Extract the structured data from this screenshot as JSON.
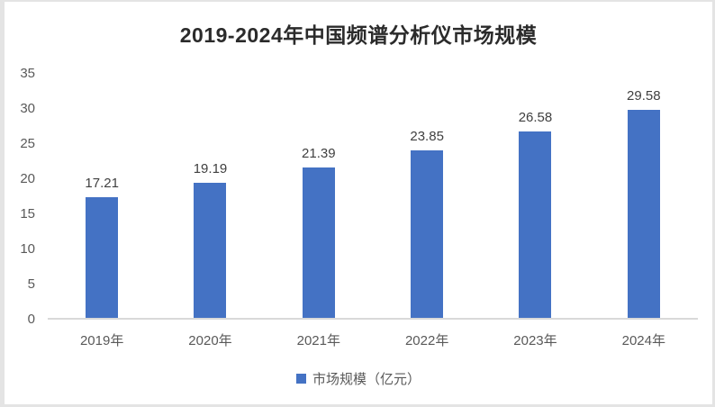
{
  "chart_data": {
    "type": "bar",
    "title": "2019-2024年中国频谱分析仪市场规模",
    "categories": [
      "2019年",
      "2020年",
      "2021年",
      "2022年",
      "2023年",
      "2024年"
    ],
    "series": [
      {
        "name": "市场规模（亿元）",
        "values": [
          17.21,
          19.19,
          21.39,
          23.85,
          26.58,
          29.58
        ]
      }
    ],
    "data_labels": [
      "17.21",
      "19.19",
      "21.39",
      "23.85",
      "26.58",
      "29.58"
    ],
    "xlabel": "",
    "ylabel": "",
    "ylim": [
      0,
      35
    ],
    "y_ticks": [
      0,
      5,
      10,
      15,
      20,
      25,
      30,
      35
    ],
    "grid": "off",
    "legend_position": "bottom"
  },
  "legend": {
    "label": "市场规模（亿元）"
  },
  "colors": {
    "bar": "#4472c4",
    "axis_line": "#d9d9d9",
    "tick_text": "#595959",
    "data_label_text": "#404040",
    "title_text": "#2b2b2b",
    "frame_border": "#e4e4e4",
    "background": "#ffffff"
  }
}
